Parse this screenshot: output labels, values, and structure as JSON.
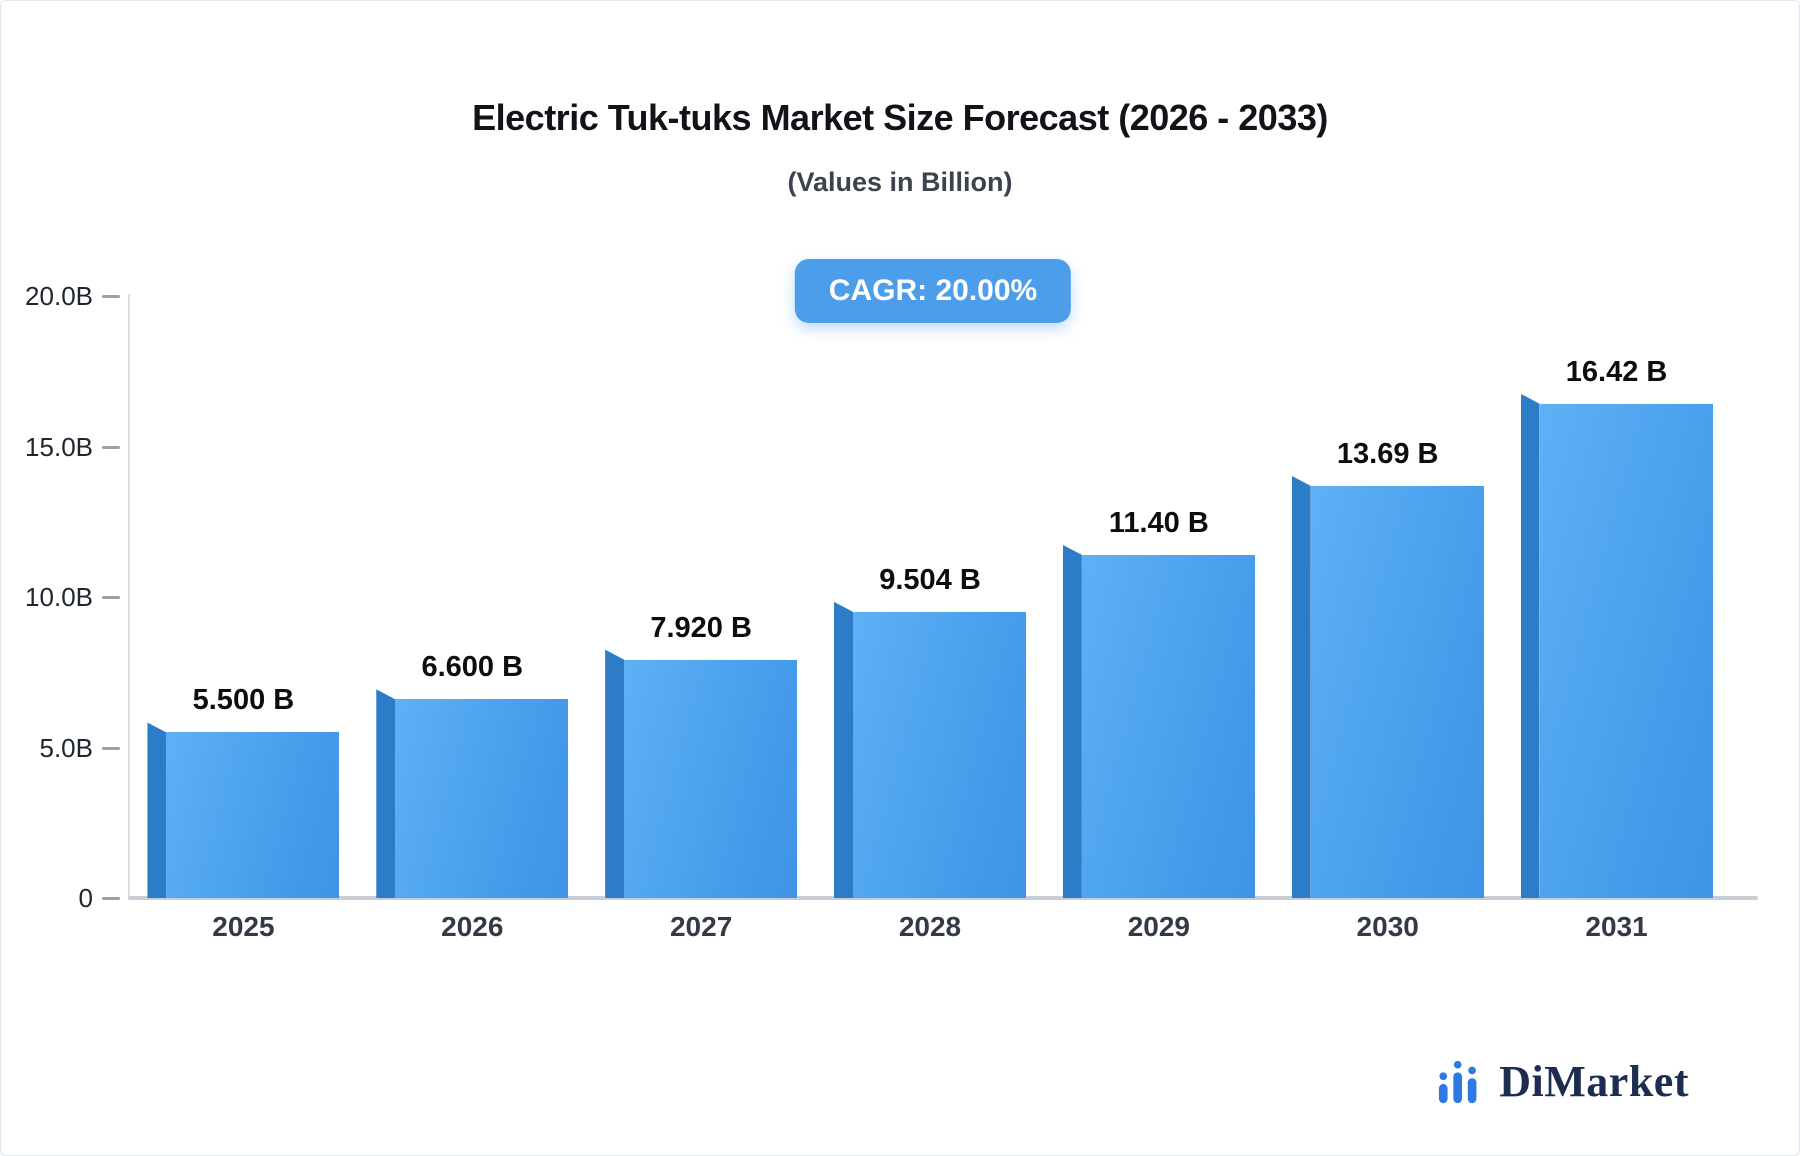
{
  "page": {
    "title": "Electric Tuk-tuks Market Size Forecast (2026 - 2033)",
    "subtitle": "(Values in Billion)",
    "cagr_badge": "CAGR: 20.00%"
  },
  "brand": {
    "logo_text": "DiMarket",
    "logo_icon": "bar-chart-with-dots-icon"
  },
  "theme": {
    "accent": "#4d9eea",
    "bar_light": "#5fb1f6",
    "bar_mid": "#49a0ec",
    "bar_dark": "#3e93e6",
    "bar_side": "#2c7cc7",
    "axis_line": "#c9ced4",
    "axis_soft": "#dadde1",
    "tick": "#9aa1a9",
    "text_dark": "#111318",
    "text_gray": "#3c434d",
    "logo_blue": "#2e7ae4",
    "logo_navy": "#1d2d50"
  },
  "chart_data": {
    "type": "bar",
    "title": "Electric Tuk-tuks Market Size Forecast (2026 - 2033)",
    "subtitle": "(Values in Billion)",
    "annotation": "CAGR: 20.00%",
    "categories": [
      "2025",
      "2026",
      "2027",
      "2028",
      "2029",
      "2030",
      "2031"
    ],
    "values": [
      5.5,
      6.6,
      7.92,
      9.504,
      11.4,
      13.69,
      16.42
    ],
    "value_labels": [
      "5.500 B",
      "6.600 B",
      "7.920 B",
      "9.504 B",
      "11.40 B",
      "13.69 B",
      "16.42 B"
    ],
    "y_ticks": [
      "20.0B",
      "15.0B",
      "10.0B",
      "5.0B",
      "0"
    ],
    "y_tick_values": [
      20,
      15,
      10,
      5,
      0
    ],
    "ylim": [
      0,
      20
    ],
    "xlabel": "",
    "ylabel": "",
    "grid": false,
    "legend": false,
    "legend_position": "none"
  }
}
